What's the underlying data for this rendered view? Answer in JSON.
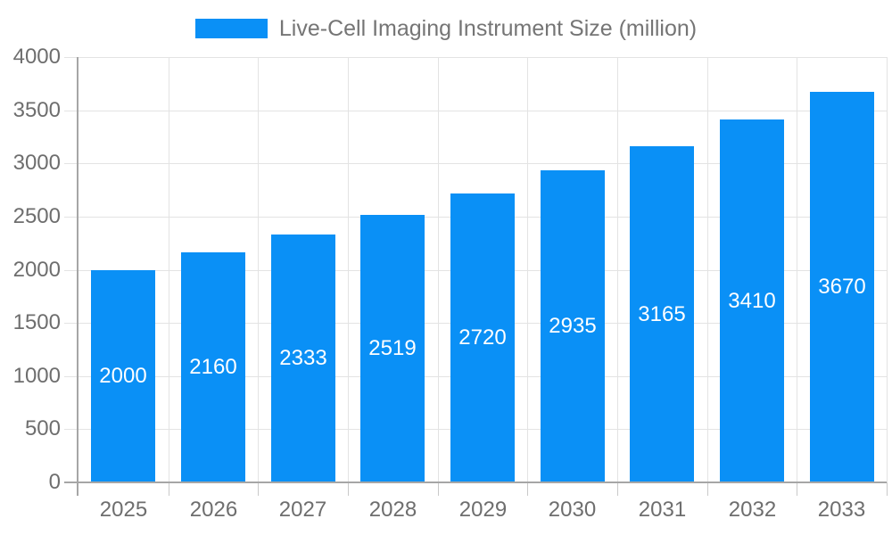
{
  "chart_data": {
    "type": "bar",
    "title": "Live-Cell Imaging Instrument Size (million)",
    "categories": [
      "2025",
      "2026",
      "2027",
      "2028",
      "2029",
      "2030",
      "2031",
      "2032",
      "2033"
    ],
    "values": [
      2000,
      2160,
      2333,
      2519,
      2720,
      2935,
      3165,
      3410,
      3670
    ],
    "bar_labels": [
      2000,
      2160,
      2333,
      2519,
      2720,
      2935,
      3165,
      3410,
      3670
    ],
    "xlabel": "",
    "ylabel": "",
    "ylim": [
      0,
      4000
    ],
    "ytick_step": 500,
    "y_ticks": [
      0,
      500,
      1000,
      1500,
      2000,
      2500,
      3000,
      3500,
      4000
    ],
    "grid": true,
    "legend_position": "top-center",
    "colors": {
      "bar": "#0A90F6",
      "bar_label": "#FFFFFF",
      "axis_line": "#A6A6A6",
      "gridline": "#E3E3E3",
      "y_tick": "#E3E3E3",
      "x_tick": "#C9C9C9",
      "axis_text": "#6E6E6E",
      "legend_text": "#757575",
      "background": "#FFFFFF"
    }
  }
}
